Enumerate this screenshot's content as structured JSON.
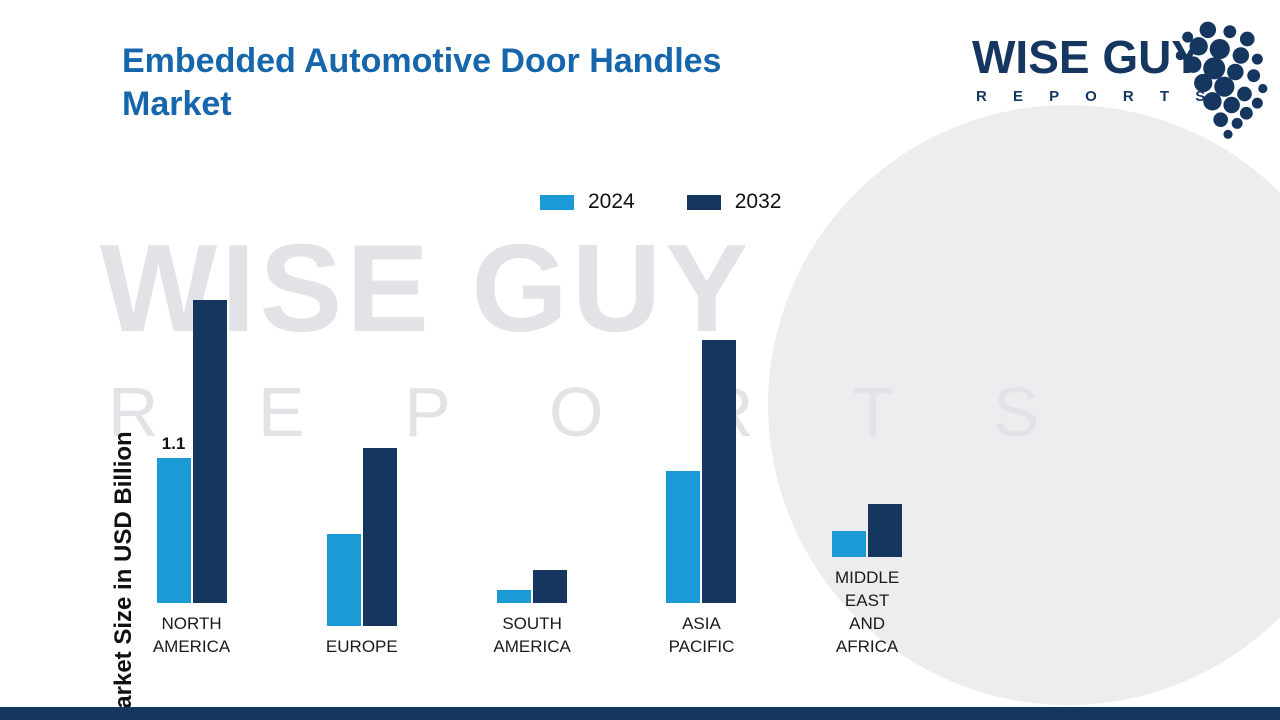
{
  "title": "Embedded Automotive Door Handles Market",
  "ylabel": "Market Size in USD Billion",
  "logo": {
    "name": "WISE GUY",
    "subtitle": "R E P O R T S"
  },
  "watermark": {
    "line1": "WISE GUY",
    "line2": "R E P O R T S"
  },
  "colors": {
    "series_2024": "#1b9ad6",
    "series_2032": "#14365f",
    "title": "#1566ab",
    "accent_bar": "#14365f"
  },
  "chart_data": {
    "type": "bar",
    "title": "Embedded Automotive Door Handles Market",
    "xlabel": "",
    "ylabel": "Market Size in USD Billion",
    "categories": [
      "NORTH AMERICA",
      "EUROPE",
      "SOUTH AMERICA",
      "ASIA PACIFIC",
      "MIDDLE EAST AND AFRICA"
    ],
    "series": [
      {
        "name": "2024",
        "color": "#1b9ad6",
        "values": [
          1.1,
          0.7,
          0.1,
          1.0,
          0.2
        ]
      },
      {
        "name": "2032",
        "color": "#14365f",
        "values": [
          2.3,
          1.35,
          0.25,
          2.0,
          0.4
        ]
      }
    ],
    "ylim": [
      0,
      2.4
    ],
    "grid": false,
    "legend_position": "top",
    "annotations": [
      {
        "series_index": 0,
        "category_index": 0,
        "text": "1.1"
      }
    ]
  }
}
